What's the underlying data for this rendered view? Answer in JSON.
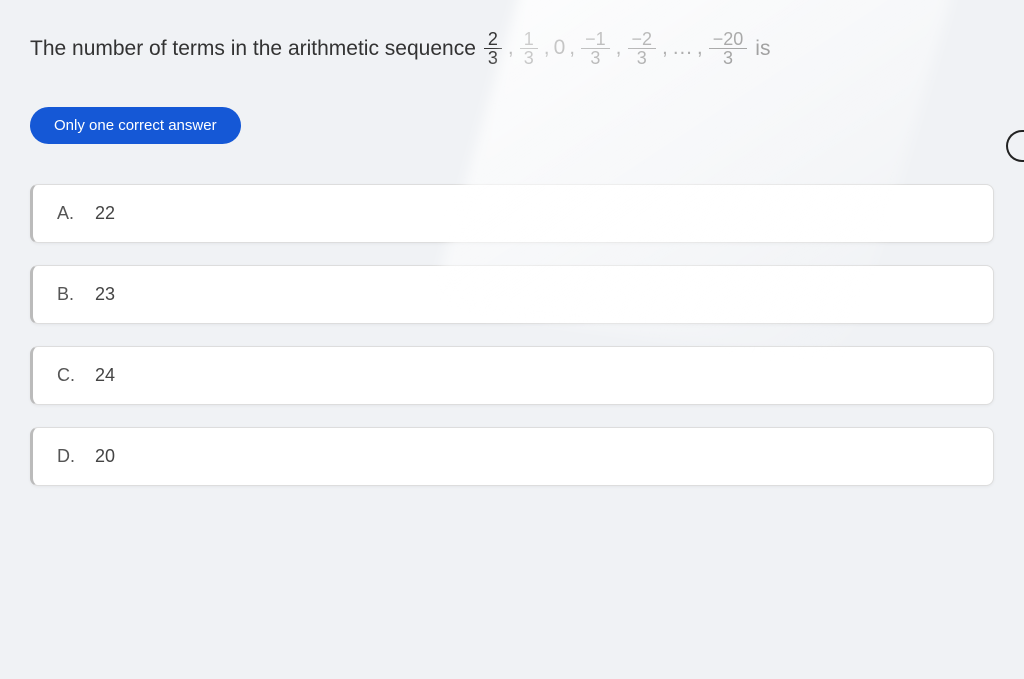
{
  "question": {
    "prefix": "The number of terms in the arithmetic sequence",
    "sequence": [
      {
        "type": "fraction",
        "num": "2",
        "den": "3"
      },
      {
        "type": "fraction",
        "num": "1",
        "den": "3"
      },
      {
        "type": "plain",
        "value": "0"
      },
      {
        "type": "fraction",
        "num": "−1",
        "den": "3"
      },
      {
        "type": "fraction",
        "num": "−2",
        "den": "3"
      },
      {
        "type": "plain",
        "value": "…"
      },
      {
        "type": "fraction",
        "num": "−20",
        "den": "3"
      }
    ],
    "suffix": "is"
  },
  "badge": "Only one correct answer",
  "options": [
    {
      "letter": "A.",
      "value": "22"
    },
    {
      "letter": "B.",
      "value": "23"
    },
    {
      "letter": "C.",
      "value": "24"
    },
    {
      "letter": "D.",
      "value": "20"
    }
  ],
  "colors": {
    "badge_bg": "#1558d6",
    "page_bg": "#f0f2f5",
    "option_bg": "#ffffff",
    "option_border": "#dddddd",
    "option_left_accent": "#bbbbbb",
    "text": "#333333"
  }
}
